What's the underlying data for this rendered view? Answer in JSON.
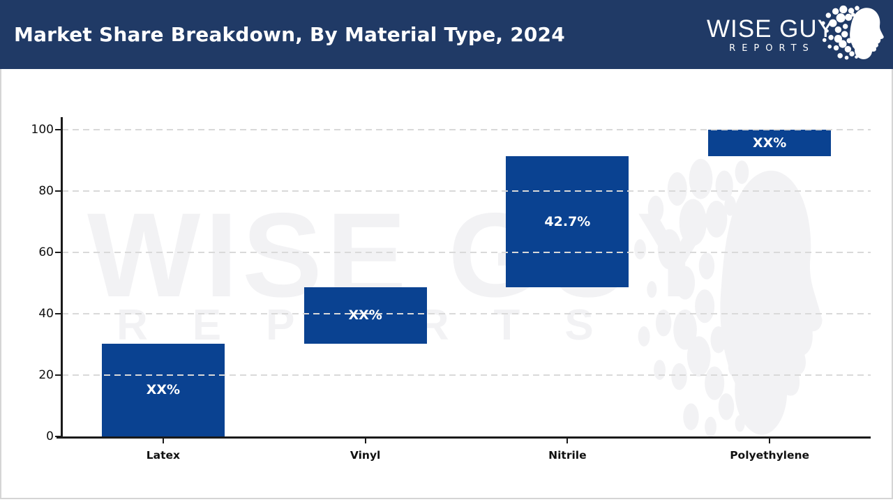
{
  "header": {
    "title": "Market Share Breakdown, By Material Type, 2024",
    "logo": {
      "primary": "WISE GUY",
      "secondary": "REPORTS"
    }
  },
  "watermark": {
    "primary": "WISE GUY",
    "secondary": "REPORTS"
  },
  "chart_data": {
    "type": "bar",
    "subtype": "floating-waterfall",
    "title": "Market Share Breakdown, By Material Type, 2024",
    "categories": [
      "Latex",
      "Vinyl",
      "Nitrile",
      "Polyethylene"
    ],
    "segments": [
      {
        "category": "Latex",
        "start": 0,
        "end": 30.3,
        "label": "XX%"
      },
      {
        "category": "Vinyl",
        "start": 30.3,
        "end": 48.7,
        "label": "XX%"
      },
      {
        "category": "Nitrile",
        "start": 48.7,
        "end": 91.4,
        "label": "42.7%"
      },
      {
        "category": "Polyethylene",
        "start": 91.4,
        "end": 100,
        "label": "XX%"
      }
    ],
    "xlabel": "",
    "ylabel": "",
    "ylim": [
      0,
      104
    ],
    "yticks": [
      0,
      20,
      40,
      60,
      80,
      100
    ],
    "grid": "horizontal dashed, drawn above bars",
    "legend": null,
    "bar_width_fraction": 0.607,
    "label_color": "#ffffff"
  },
  "colors": {
    "header_bg": "#203a66",
    "bar": "#0a4291",
    "grid": "#d9d9d9",
    "axis": "#1a1a1a",
    "watermark": "#f2f2f4",
    "frame_border": "#d5d5d5",
    "title_text": "#ffffff"
  }
}
